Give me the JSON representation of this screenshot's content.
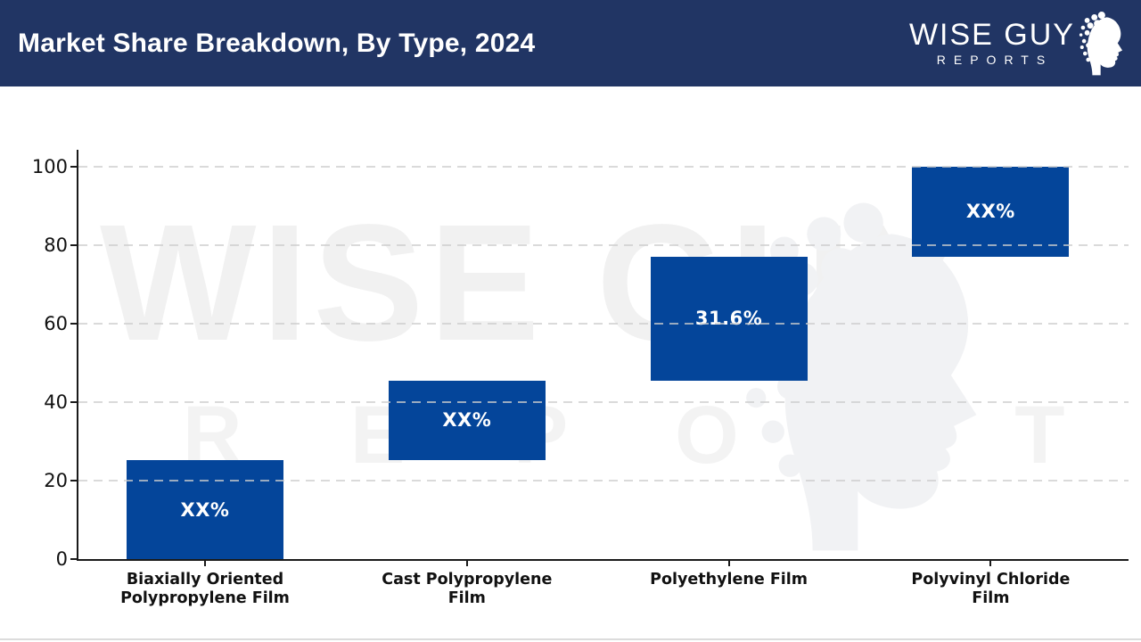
{
  "header": {
    "title": "Market Share Breakdown, By Type, 2024",
    "bg_color": "#213564",
    "logo": {
      "line1": "WISE GUY",
      "line2": "REPORTS"
    }
  },
  "watermark": {
    "line1": "WISE GUY",
    "line2": "R E P O R T S"
  },
  "chart_data": {
    "type": "bar",
    "variant": "floating-range-bars (waterfall of market shares)",
    "title": "Market Share Breakdown, By Type, 2024",
    "categories": [
      [
        "Biaxially Oriented",
        "Polypropylene Film"
      ],
      [
        "Cast Polypropylene",
        "Film"
      ],
      [
        "Polyethylene Film"
      ],
      [
        "Polyvinyl Chloride",
        "Film"
      ]
    ],
    "segments": [
      {
        "start": 0,
        "end": 25.2,
        "label": "XX%"
      },
      {
        "start": 25.2,
        "end": 45.5,
        "label": "XX%"
      },
      {
        "start": 45.5,
        "end": 77.1,
        "label": "31.6%"
      },
      {
        "start": 77.1,
        "end": 100,
        "label": "XX%"
      }
    ],
    "xlabel": "",
    "ylabel": "",
    "ylim": [
      0,
      100
    ],
    "yticks": [
      0,
      20,
      40,
      60,
      80,
      100
    ],
    "grid": "horizontal dashed, drawn over bars",
    "legend": "none",
    "bar_color": "#04459a",
    "bar_label_color": "#ffffff"
  }
}
